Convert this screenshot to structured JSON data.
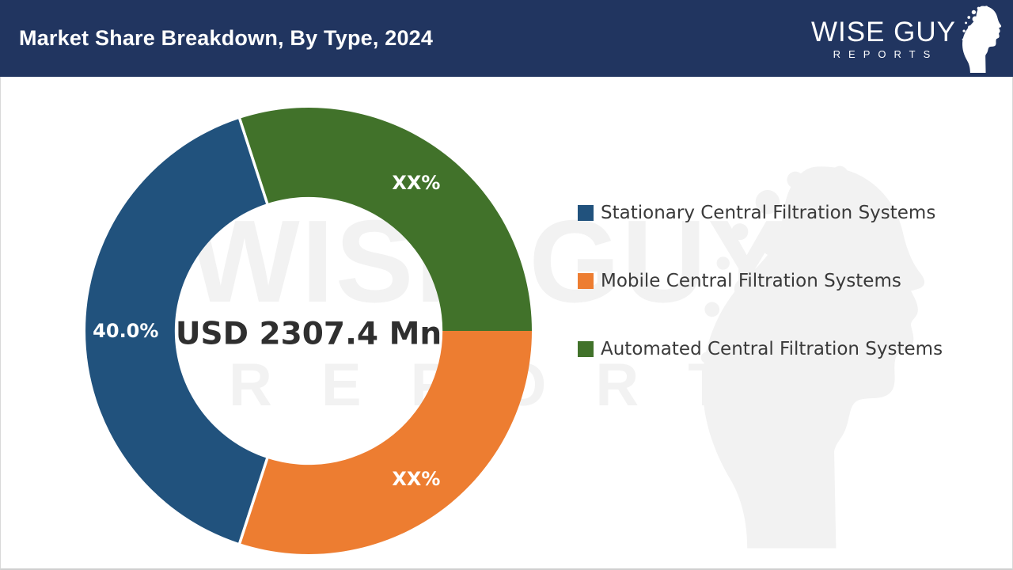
{
  "header": {
    "title": "Market Share Breakdown, By Type, 2024",
    "bg_color": "#213560",
    "logo": {
      "line1": "WISE GUY",
      "line2": "REPORTS"
    }
  },
  "watermark": {
    "line1": "WISE GUY",
    "line2": "REPORTS"
  },
  "chart_data": {
    "type": "donut",
    "title": "Market Share Breakdown, By Type, 2024",
    "center_label": "USD 2307.4 Mn",
    "units": "percent share",
    "inner_radius_ratio": 0.6,
    "label_radius_ratio": 0.82,
    "start_angle_deg": 0,
    "direction": "counterclockwise",
    "draw_order": [
      2,
      0,
      1
    ],
    "separator_color": "#ffffff",
    "legend_position": "right",
    "segments": [
      {
        "label": "Stationary Central Filtration Systems",
        "value": 40,
        "display_pct": "40.0%",
        "color": "#21527D"
      },
      {
        "label": "Mobile Central Filtration Systems",
        "value": 30,
        "display_pct": "XX%",
        "color": "#ED7D31"
      },
      {
        "label": "Automated Central Filtration Systems",
        "value": 30,
        "display_pct": "XX%",
        "color": "#41722A"
      }
    ]
  }
}
